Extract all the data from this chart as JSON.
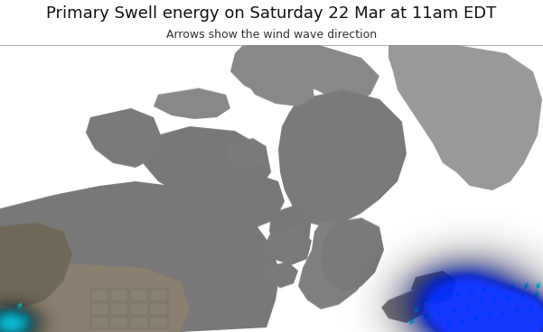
{
  "title": "Primary Swell energy on Saturday 22 Mar at 11am EDT",
  "subtitle": "Arrows show the wind wave direction",
  "title_fontsize": 13,
  "subtitle_fontsize": 9,
  "fig_width": 6.01,
  "fig_height": 3.68,
  "dpi": 100,
  "header_color": "#ffffff",
  "ocean_color": "#000000",
  "land_color": "#808080",
  "glacier_color": "#aaaaaa",
  "swell_blue_dark": "#0000cc",
  "swell_blue_bright": "#0044ff",
  "arrow_color": "#00ffff",
  "border_color": "#444444",
  "title_color": "#111111",
  "subtitle_color": "#333333"
}
